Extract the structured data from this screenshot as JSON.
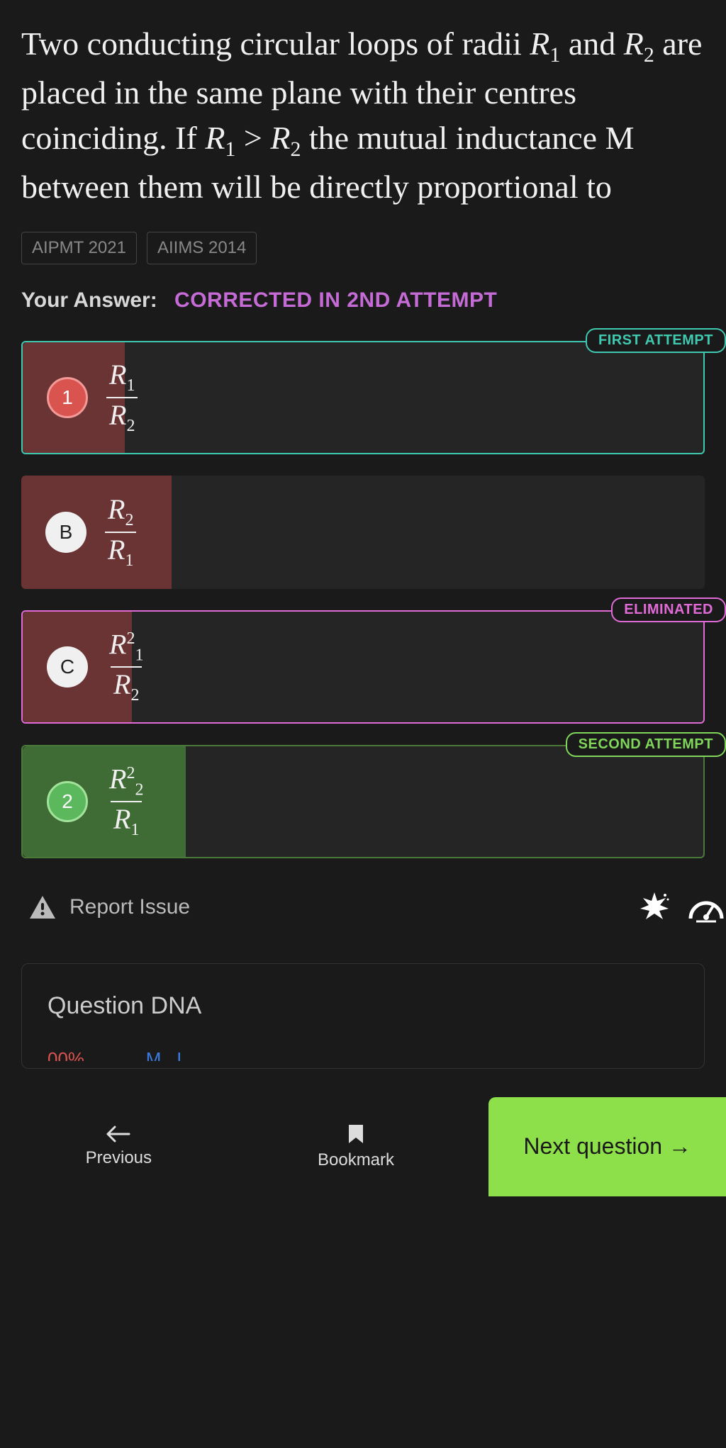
{
  "question": {
    "parts": [
      "Two conducting circular loops of radii ",
      {
        "var": "R",
        "sub": "1"
      },
      " and ",
      {
        "var": "R",
        "sub": "2"
      },
      " are placed in the same plane with their centres coinciding. If ",
      {
        "var": "R",
        "sub": "1"
      },
      " > ",
      {
        "var": "R",
        "sub": "2"
      },
      " the mutual inductance M between them will be directly proportional to"
    ]
  },
  "tags": [
    "AIPMT 2021",
    "AIIMS 2014"
  ],
  "answer_line": {
    "label": "Your Answer:",
    "status": "CORRECTED IN 2ND ATTEMPT"
  },
  "options": [
    {
      "id": "opt-1",
      "badge_label": "1",
      "badge_style": "circle-red",
      "num": "R",
      "num_sub": "1",
      "num_sup": "",
      "den": "R",
      "den_sub": "2",
      "fill_pct": 15,
      "fill_style": "fill-red",
      "outline": "outlined-teal",
      "top_badge": {
        "text": "FIRST ATTEMPT",
        "style": "badge-teal"
      }
    },
    {
      "id": "opt-b",
      "badge_label": "B",
      "badge_style": "circle-white",
      "num": "R",
      "num_sub": "2",
      "num_sup": "",
      "den": "R",
      "den_sub": "1",
      "fill_pct": 22,
      "fill_style": "fill-red",
      "outline": "",
      "top_badge": null
    },
    {
      "id": "opt-c",
      "badge_label": "C",
      "badge_style": "circle-white",
      "num": "R",
      "num_sub": "1",
      "num_sup": "2",
      "den": "R",
      "den_sub": "2",
      "fill_pct": 16,
      "fill_style": "fill-red",
      "outline": "outlined-pink",
      "top_badge": {
        "text": "ELIMINATED",
        "style": "badge-pink"
      }
    },
    {
      "id": "opt-2",
      "badge_label": "2",
      "badge_style": "circle-green",
      "num": "R",
      "num_sub": "2",
      "num_sup": "2",
      "den": "R",
      "den_sub": "1",
      "fill_pct": 24,
      "fill_style": "fill-green",
      "outline": "outlined-green",
      "top_badge": {
        "text": "SECOND ATTEMPT",
        "style": "badge-green"
      }
    }
  ],
  "report_label": "Report Issue",
  "dna": {
    "title": "Question DNA"
  },
  "bottom": {
    "prev": "Previous",
    "bookmark": "Bookmark",
    "next": "Next question →"
  },
  "colors": {
    "bg": "#1a1a1a",
    "accent_purple": "#c56bd6",
    "accent_teal": "#3fc9b0",
    "accent_green_btn": "#8de04a",
    "fill_red": "#6b3434",
    "fill_green": "#3f6b34"
  }
}
